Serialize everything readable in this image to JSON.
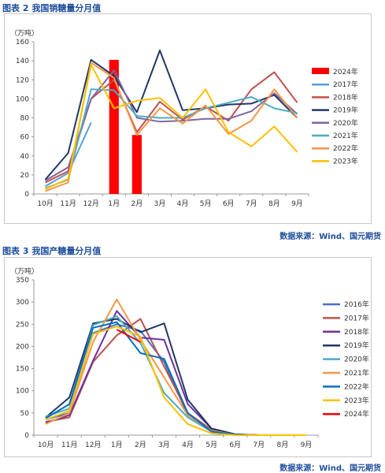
{
  "chart_data": [
    {
      "figure_title": "图表 2  我国销糖量分月值",
      "source": "数据来源：Wind、国元期货",
      "type": "line",
      "unit_label": "（万吨）",
      "categories": [
        "10月",
        "11月",
        "12月",
        "1月",
        "2月",
        "3月",
        "4月",
        "5月",
        "6月",
        "7月",
        "8月",
        "9月"
      ],
      "ylim": [
        0,
        160
      ],
      "yticks": [
        0,
        20,
        40,
        60,
        80,
        100,
        120,
        140,
        160
      ],
      "grid": false,
      "legend_position": "right",
      "series": [
        {
          "name": "2024年",
          "kind": "bar",
          "color": "#ff0000",
          "values": [
            null,
            null,
            null,
            141,
            62,
            null,
            null,
            null,
            null,
            null,
            null,
            null
          ]
        },
        {
          "name": "2017年",
          "color": "#5b9bd5",
          "values": [
            8,
            22,
            75,
            null,
            null,
            null,
            null,
            null,
            null,
            null,
            null,
            null
          ]
        },
        {
          "name": "2018年",
          "color": "#c0504d",
          "values": [
            12,
            24,
            100,
            120,
            65,
            97,
            78,
            92,
            77,
            110,
            128,
            96
          ]
        },
        {
          "name": "2019年",
          "color": "#1f3864",
          "values": [
            15,
            43,
            141,
            124,
            86,
            151,
            88,
            90,
            94,
            95,
            104,
            80
          ]
        },
        {
          "name": "2020年",
          "color": "#8064a2",
          "values": [
            14,
            28,
            100,
            130,
            80,
            76,
            77,
            79,
            79,
            87,
            106,
            84
          ]
        },
        {
          "name": "2021年",
          "color": "#4bacc6",
          "values": [
            6,
            15,
            110,
            109,
            82,
            80,
            80,
            90,
            96,
            102,
            90,
            85
          ]
        },
        {
          "name": "2022年",
          "color": "#f79646",
          "values": [
            3,
            12,
            138,
            122,
            62,
            90,
            74,
            93,
            63,
            77,
            110,
            80
          ]
        },
        {
          "name": "2023年",
          "color": "#ffc000",
          "values": [
            5,
            16,
            136,
            90,
            98,
            101,
            80,
            110,
            65,
            50,
            71,
            44
          ]
        }
      ]
    },
    {
      "figure_title": "图表 3  我国产糖量分月值",
      "source": "数据来源：Wind、国元期货",
      "type": "line",
      "unit_label": "（万吨）",
      "categories": [
        "10月",
        "11月",
        "12月",
        "1月",
        "2月",
        "3月",
        "4月",
        "5月",
        "6月",
        "7月",
        "8月",
        "9月"
      ],
      "ylim": [
        0,
        350
      ],
      "yticks": [
        0,
        50,
        100,
        150,
        200,
        250,
        300,
        350
      ],
      "grid": false,
      "legend_position": "right",
      "series": [
        {
          "name": "2016年",
          "color": "#4472c4",
          "values": [
            35,
            50,
            230,
            250,
            235,
            165,
            45,
            10,
            1,
            0,
            0,
            0
          ]
        },
        {
          "name": "2017年",
          "color": "#c0504d",
          "values": [
            30,
            40,
            165,
            225,
            262,
            155,
            50,
            12,
            1,
            0,
            0,
            0
          ]
        },
        {
          "name": "2018年",
          "color": "#7030a0",
          "values": [
            28,
            45,
            168,
            280,
            220,
            215,
            70,
            15,
            2,
            0,
            0,
            0
          ]
        },
        {
          "name": "2019年",
          "color": "#1f3864",
          "values": [
            40,
            85,
            252,
            262,
            232,
            252,
            80,
            15,
            2,
            0,
            0,
            0
          ]
        },
        {
          "name": "2020年",
          "color": "#4bacc6",
          "values": [
            42,
            60,
            248,
            268,
            208,
            95,
            40,
            8,
            1,
            0,
            0,
            0
          ]
        },
        {
          "name": "2021年",
          "color": "#f79646",
          "values": [
            25,
            50,
            210,
            306,
            215,
            130,
            45,
            10,
            1,
            0,
            0,
            0
          ]
        },
        {
          "name": "2022年",
          "color": "#0070c0",
          "values": [
            38,
            70,
            242,
            255,
            185,
            172,
            50,
            8,
            1,
            0,
            0,
            0
          ]
        },
        {
          "name": "2023年",
          "color": "#ffc000",
          "values": [
            35,
            55,
            228,
            245,
            222,
            85,
            25,
            4,
            0,
            0,
            0,
            0
          ]
        },
        {
          "name": "2024年",
          "color": "#ff0000",
          "values": [
            null,
            null,
            null,
            238,
            210,
            null,
            null,
            null,
            null,
            null,
            null,
            null
          ]
        }
      ]
    }
  ]
}
